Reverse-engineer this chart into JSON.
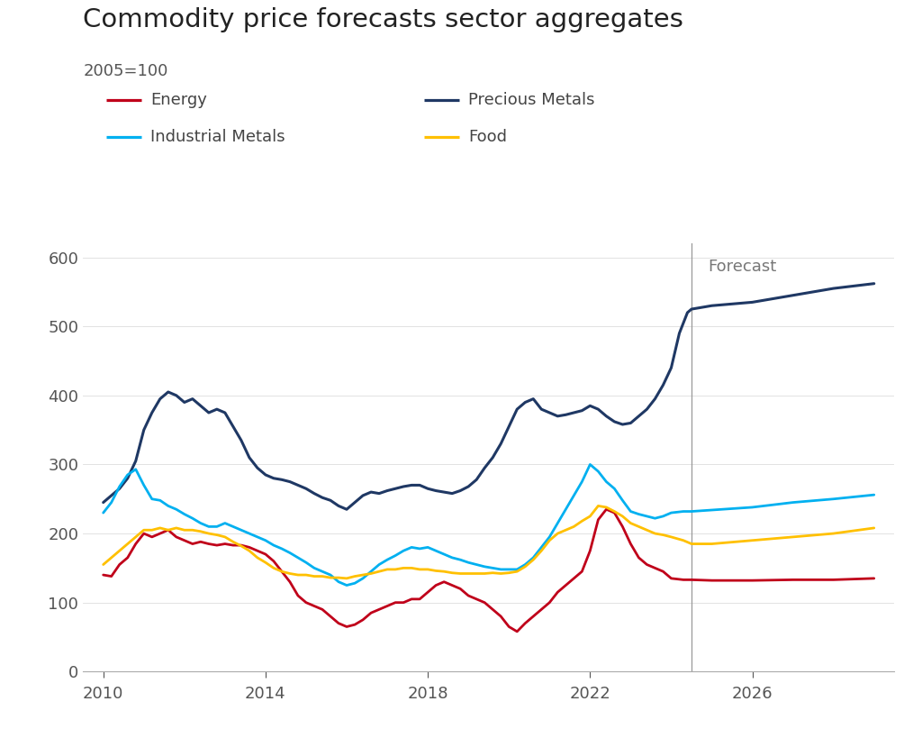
{
  "title": "Commodity price forecasts sector aggregates",
  "subtitle": "2005=100",
  "forecast_label": "Forecast",
  "forecast_year": 2024.5,
  "xlim": [
    2009.5,
    2029.5
  ],
  "ylim": [
    0,
    620
  ],
  "yticks": [
    0,
    100,
    200,
    300,
    400,
    500,
    600
  ],
  "xticks": [
    2010,
    2014,
    2018,
    2022,
    2026
  ],
  "bg_color": "#ffffff",
  "series": {
    "Energy": {
      "color": "#c0001a",
      "linewidth": 2.0,
      "data": [
        [
          2010.0,
          140
        ],
        [
          2010.2,
          138
        ],
        [
          2010.4,
          155
        ],
        [
          2010.6,
          165
        ],
        [
          2010.8,
          185
        ],
        [
          2011.0,
          200
        ],
        [
          2011.2,
          195
        ],
        [
          2011.4,
          200
        ],
        [
          2011.6,
          205
        ],
        [
          2011.8,
          195
        ],
        [
          2012.0,
          190
        ],
        [
          2012.2,
          185
        ],
        [
          2012.4,
          188
        ],
        [
          2012.6,
          185
        ],
        [
          2012.8,
          183
        ],
        [
          2013.0,
          185
        ],
        [
          2013.2,
          183
        ],
        [
          2013.4,
          183
        ],
        [
          2013.6,
          180
        ],
        [
          2013.8,
          175
        ],
        [
          2014.0,
          170
        ],
        [
          2014.2,
          160
        ],
        [
          2014.4,
          145
        ],
        [
          2014.6,
          130
        ],
        [
          2014.8,
          110
        ],
        [
          2015.0,
          100
        ],
        [
          2015.2,
          95
        ],
        [
          2015.4,
          90
        ],
        [
          2015.6,
          80
        ],
        [
          2015.8,
          70
        ],
        [
          2016.0,
          65
        ],
        [
          2016.2,
          68
        ],
        [
          2016.4,
          75
        ],
        [
          2016.6,
          85
        ],
        [
          2016.8,
          90
        ],
        [
          2017.0,
          95
        ],
        [
          2017.2,
          100
        ],
        [
          2017.4,
          100
        ],
        [
          2017.6,
          105
        ],
        [
          2017.8,
          105
        ],
        [
          2018.0,
          115
        ],
        [
          2018.2,
          125
        ],
        [
          2018.4,
          130
        ],
        [
          2018.6,
          125
        ],
        [
          2018.8,
          120
        ],
        [
          2019.0,
          110
        ],
        [
          2019.2,
          105
        ],
        [
          2019.4,
          100
        ],
        [
          2019.6,
          90
        ],
        [
          2019.8,
          80
        ],
        [
          2020.0,
          65
        ],
        [
          2020.2,
          58
        ],
        [
          2020.4,
          70
        ],
        [
          2020.6,
          80
        ],
        [
          2020.8,
          90
        ],
        [
          2021.0,
          100
        ],
        [
          2021.2,
          115
        ],
        [
          2021.4,
          125
        ],
        [
          2021.6,
          135
        ],
        [
          2021.8,
          145
        ],
        [
          2022.0,
          175
        ],
        [
          2022.2,
          220
        ],
        [
          2022.4,
          235
        ],
        [
          2022.6,
          230
        ],
        [
          2022.8,
          210
        ],
        [
          2023.0,
          185
        ],
        [
          2023.2,
          165
        ],
        [
          2023.4,
          155
        ],
        [
          2023.6,
          150
        ],
        [
          2023.8,
          145
        ],
        [
          2024.0,
          135
        ],
        [
          2024.3,
          133
        ],
        [
          2024.5,
          133
        ],
        [
          2025.0,
          132
        ],
        [
          2026.0,
          132
        ],
        [
          2027.0,
          133
        ],
        [
          2028.0,
          133
        ],
        [
          2029.0,
          135
        ]
      ]
    },
    "Precious Metals": {
      "color": "#1f3864",
      "linewidth": 2.2,
      "data": [
        [
          2010.0,
          245
        ],
        [
          2010.2,
          255
        ],
        [
          2010.4,
          265
        ],
        [
          2010.6,
          280
        ],
        [
          2010.8,
          305
        ],
        [
          2011.0,
          350
        ],
        [
          2011.2,
          375
        ],
        [
          2011.4,
          395
        ],
        [
          2011.6,
          405
        ],
        [
          2011.8,
          400
        ],
        [
          2012.0,
          390
        ],
        [
          2012.2,
          395
        ],
        [
          2012.4,
          385
        ],
        [
          2012.6,
          375
        ],
        [
          2012.8,
          380
        ],
        [
          2013.0,
          375
        ],
        [
          2013.2,
          355
        ],
        [
          2013.4,
          335
        ],
        [
          2013.6,
          310
        ],
        [
          2013.8,
          295
        ],
        [
          2014.0,
          285
        ],
        [
          2014.2,
          280
        ],
        [
          2014.4,
          278
        ],
        [
          2014.6,
          275
        ],
        [
          2014.8,
          270
        ],
        [
          2015.0,
          265
        ],
        [
          2015.2,
          258
        ],
        [
          2015.4,
          252
        ],
        [
          2015.6,
          248
        ],
        [
          2015.8,
          240
        ],
        [
          2016.0,
          235
        ],
        [
          2016.2,
          245
        ],
        [
          2016.4,
          255
        ],
        [
          2016.6,
          260
        ],
        [
          2016.8,
          258
        ],
        [
          2017.0,
          262
        ],
        [
          2017.2,
          265
        ],
        [
          2017.4,
          268
        ],
        [
          2017.6,
          270
        ],
        [
          2017.8,
          270
        ],
        [
          2018.0,
          265
        ],
        [
          2018.2,
          262
        ],
        [
          2018.4,
          260
        ],
        [
          2018.6,
          258
        ],
        [
          2018.8,
          262
        ],
        [
          2019.0,
          268
        ],
        [
          2019.2,
          278
        ],
        [
          2019.4,
          295
        ],
        [
          2019.6,
          310
        ],
        [
          2019.8,
          330
        ],
        [
          2020.0,
          355
        ],
        [
          2020.2,
          380
        ],
        [
          2020.4,
          390
        ],
        [
          2020.6,
          395
        ],
        [
          2020.8,
          380
        ],
        [
          2021.0,
          375
        ],
        [
          2021.2,
          370
        ],
        [
          2021.4,
          372
        ],
        [
          2021.6,
          375
        ],
        [
          2021.8,
          378
        ],
        [
          2022.0,
          385
        ],
        [
          2022.2,
          380
        ],
        [
          2022.4,
          370
        ],
        [
          2022.6,
          362
        ],
        [
          2022.8,
          358
        ],
        [
          2023.0,
          360
        ],
        [
          2023.2,
          370
        ],
        [
          2023.4,
          380
        ],
        [
          2023.6,
          395
        ],
        [
          2023.8,
          415
        ],
        [
          2024.0,
          440
        ],
        [
          2024.2,
          490
        ],
        [
          2024.4,
          520
        ],
        [
          2024.5,
          525
        ],
        [
          2025.0,
          530
        ],
        [
          2026.0,
          535
        ],
        [
          2027.0,
          545
        ],
        [
          2028.0,
          555
        ],
        [
          2029.0,
          562
        ]
      ]
    },
    "Industrial Metals": {
      "color": "#00b0f0",
      "linewidth": 2.0,
      "data": [
        [
          2010.0,
          230
        ],
        [
          2010.2,
          245
        ],
        [
          2010.4,
          268
        ],
        [
          2010.6,
          285
        ],
        [
          2010.8,
          293
        ],
        [
          2011.0,
          270
        ],
        [
          2011.2,
          250
        ],
        [
          2011.4,
          248
        ],
        [
          2011.6,
          240
        ],
        [
          2011.8,
          235
        ],
        [
          2012.0,
          228
        ],
        [
          2012.2,
          222
        ],
        [
          2012.4,
          215
        ],
        [
          2012.6,
          210
        ],
        [
          2012.8,
          210
        ],
        [
          2013.0,
          215
        ],
        [
          2013.2,
          210
        ],
        [
          2013.4,
          205
        ],
        [
          2013.6,
          200
        ],
        [
          2013.8,
          195
        ],
        [
          2014.0,
          190
        ],
        [
          2014.2,
          183
        ],
        [
          2014.4,
          178
        ],
        [
          2014.6,
          172
        ],
        [
          2014.8,
          165
        ],
        [
          2015.0,
          158
        ],
        [
          2015.2,
          150
        ],
        [
          2015.4,
          145
        ],
        [
          2015.6,
          140
        ],
        [
          2015.8,
          130
        ],
        [
          2016.0,
          125
        ],
        [
          2016.2,
          128
        ],
        [
          2016.4,
          135
        ],
        [
          2016.6,
          145
        ],
        [
          2016.8,
          155
        ],
        [
          2017.0,
          162
        ],
        [
          2017.2,
          168
        ],
        [
          2017.4,
          175
        ],
        [
          2017.6,
          180
        ],
        [
          2017.8,
          178
        ],
        [
          2018.0,
          180
        ],
        [
          2018.2,
          175
        ],
        [
          2018.4,
          170
        ],
        [
          2018.6,
          165
        ],
        [
          2018.8,
          162
        ],
        [
          2019.0,
          158
        ],
        [
          2019.2,
          155
        ],
        [
          2019.4,
          152
        ],
        [
          2019.6,
          150
        ],
        [
          2019.8,
          148
        ],
        [
          2020.0,
          148
        ],
        [
          2020.2,
          148
        ],
        [
          2020.4,
          155
        ],
        [
          2020.6,
          165
        ],
        [
          2020.8,
          180
        ],
        [
          2021.0,
          195
        ],
        [
          2021.2,
          215
        ],
        [
          2021.4,
          235
        ],
        [
          2021.6,
          255
        ],
        [
          2021.8,
          275
        ],
        [
          2022.0,
          300
        ],
        [
          2022.2,
          290
        ],
        [
          2022.4,
          275
        ],
        [
          2022.6,
          265
        ],
        [
          2022.8,
          248
        ],
        [
          2023.0,
          232
        ],
        [
          2023.2,
          228
        ],
        [
          2023.4,
          225
        ],
        [
          2023.6,
          222
        ],
        [
          2023.8,
          225
        ],
        [
          2024.0,
          230
        ],
        [
          2024.3,
          232
        ],
        [
          2024.5,
          232
        ],
        [
          2025.0,
          234
        ],
        [
          2026.0,
          238
        ],
        [
          2027.0,
          245
        ],
        [
          2028.0,
          250
        ],
        [
          2029.0,
          256
        ]
      ]
    },
    "Food": {
      "color": "#ffc000",
      "linewidth": 2.0,
      "data": [
        [
          2010.0,
          155
        ],
        [
          2010.2,
          165
        ],
        [
          2010.4,
          175
        ],
        [
          2010.6,
          185
        ],
        [
          2010.8,
          195
        ],
        [
          2011.0,
          205
        ],
        [
          2011.2,
          205
        ],
        [
          2011.4,
          208
        ],
        [
          2011.6,
          205
        ],
        [
          2011.8,
          208
        ],
        [
          2012.0,
          205
        ],
        [
          2012.2,
          205
        ],
        [
          2012.4,
          203
        ],
        [
          2012.6,
          200
        ],
        [
          2012.8,
          198
        ],
        [
          2013.0,
          195
        ],
        [
          2013.2,
          188
        ],
        [
          2013.4,
          182
        ],
        [
          2013.6,
          175
        ],
        [
          2013.8,
          165
        ],
        [
          2014.0,
          158
        ],
        [
          2014.2,
          150
        ],
        [
          2014.4,
          145
        ],
        [
          2014.6,
          142
        ],
        [
          2014.8,
          140
        ],
        [
          2015.0,
          140
        ],
        [
          2015.2,
          138
        ],
        [
          2015.4,
          138
        ],
        [
          2015.6,
          136
        ],
        [
          2015.8,
          136
        ],
        [
          2016.0,
          135
        ],
        [
          2016.2,
          138
        ],
        [
          2016.4,
          140
        ],
        [
          2016.6,
          142
        ],
        [
          2016.8,
          145
        ],
        [
          2017.0,
          148
        ],
        [
          2017.2,
          148
        ],
        [
          2017.4,
          150
        ],
        [
          2017.6,
          150
        ],
        [
          2017.8,
          148
        ],
        [
          2018.0,
          148
        ],
        [
          2018.2,
          146
        ],
        [
          2018.4,
          145
        ],
        [
          2018.6,
          143
        ],
        [
          2018.8,
          142
        ],
        [
          2019.0,
          142
        ],
        [
          2019.2,
          142
        ],
        [
          2019.4,
          142
        ],
        [
          2019.6,
          143
        ],
        [
          2019.8,
          142
        ],
        [
          2020.0,
          143
        ],
        [
          2020.2,
          145
        ],
        [
          2020.4,
          152
        ],
        [
          2020.6,
          162
        ],
        [
          2020.8,
          175
        ],
        [
          2021.0,
          190
        ],
        [
          2021.2,
          200
        ],
        [
          2021.4,
          205
        ],
        [
          2021.6,
          210
        ],
        [
          2021.8,
          218
        ],
        [
          2022.0,
          225
        ],
        [
          2022.2,
          240
        ],
        [
          2022.4,
          238
        ],
        [
          2022.6,
          232
        ],
        [
          2022.8,
          225
        ],
        [
          2023.0,
          215
        ],
        [
          2023.2,
          210
        ],
        [
          2023.4,
          205
        ],
        [
          2023.6,
          200
        ],
        [
          2023.8,
          198
        ],
        [
          2024.0,
          195
        ],
        [
          2024.3,
          190
        ],
        [
          2024.5,
          185
        ],
        [
          2025.0,
          185
        ],
        [
          2026.0,
          190
        ],
        [
          2027.0,
          195
        ],
        [
          2028.0,
          200
        ],
        [
          2029.0,
          208
        ]
      ]
    }
  },
  "legend": [
    {
      "label": "Energy",
      "color": "#c0001a"
    },
    {
      "label": "Precious Metals",
      "color": "#1f3864"
    },
    {
      "label": "Industrial Metals",
      "color": "#00b0f0"
    },
    {
      "label": "Food",
      "color": "#ffc000"
    }
  ]
}
